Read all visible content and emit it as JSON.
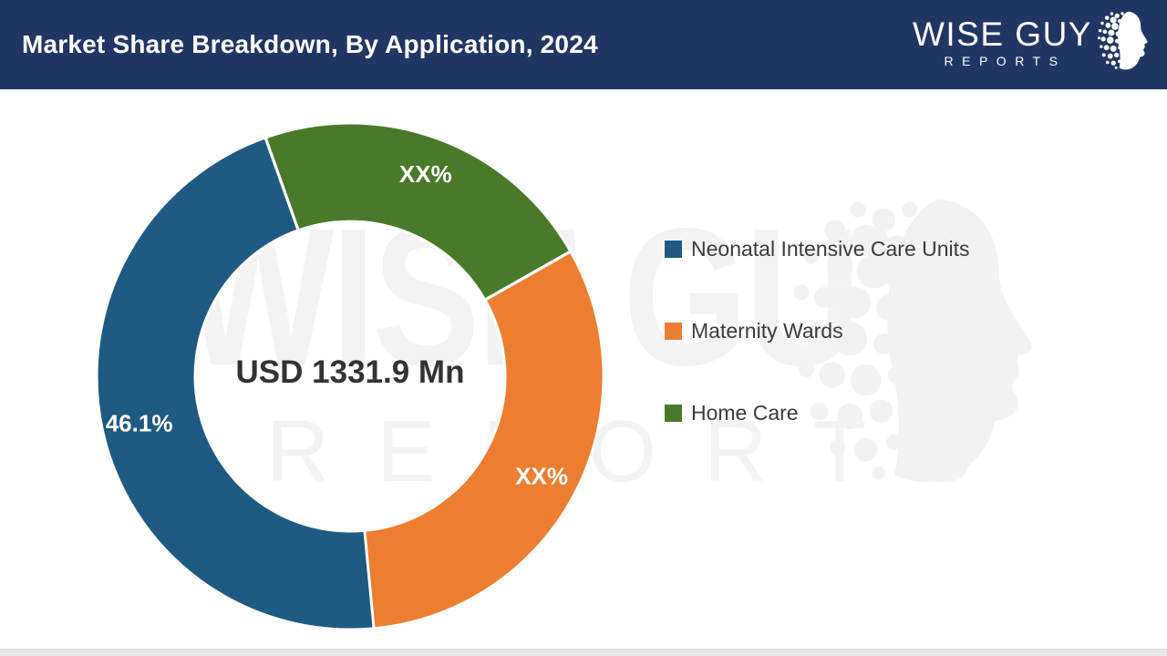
{
  "header": {
    "title": "Market Share Breakdown, By Application, 2024",
    "bg_color": "#203764",
    "logo": {
      "line1": "WISE GUY",
      "line2": "REPORTS"
    }
  },
  "chart_data": {
    "type": "pie",
    "subtype": "donut",
    "title": "Market Share Breakdown, By Application, 2024",
    "center_label": "USD 1331.9 Mn",
    "legend_position": "right",
    "geometry": {
      "outer_radius": 278,
      "inner_radius": 170,
      "label_radius": 237,
      "gap_stroke": "#ffffff"
    },
    "slices": [
      {
        "name": "Neonatal Intensive Care Units",
        "label": "46.1%",
        "pct": 46.1,
        "estimated": false,
        "color": "#1f5a82",
        "start_deg": 174.5
      },
      {
        "name": "Maternity Wards",
        "label": "XX%",
        "pct": 31.7,
        "estimated": true,
        "color": "#ed7d31",
        "start_deg": 60.5
      },
      {
        "name": "Home Care",
        "label": "XX%",
        "pct": 22.2,
        "estimated": true,
        "color": "#487a29",
        "start_deg": 340.5
      }
    ]
  },
  "watermark": {
    "line1": "WISE GUY",
    "line2": "REPORTS"
  }
}
